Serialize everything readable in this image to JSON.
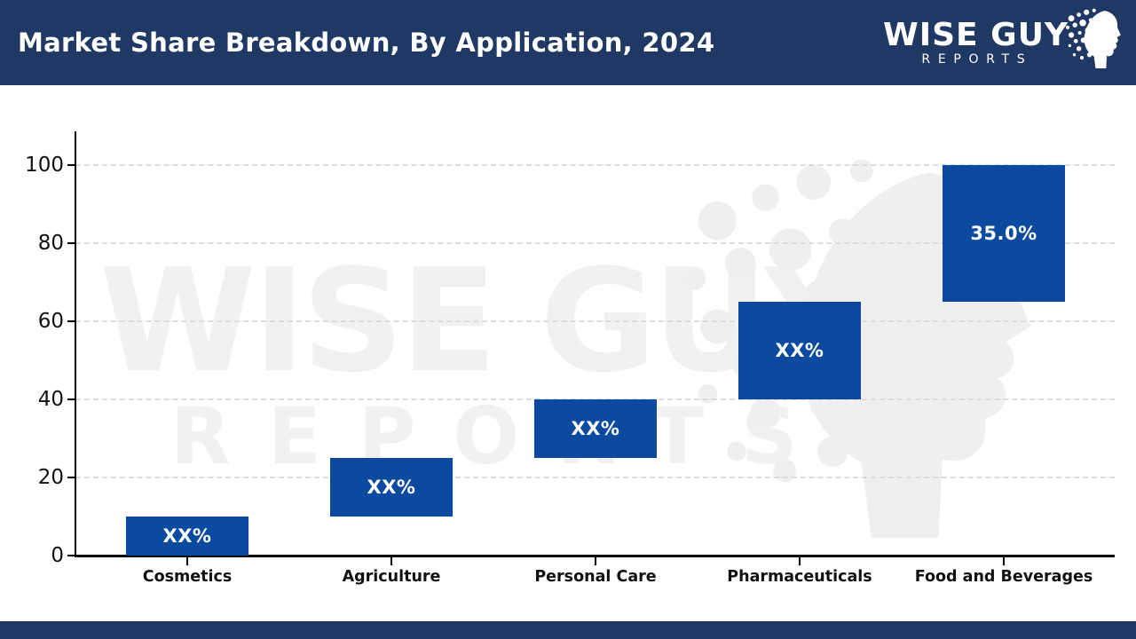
{
  "header": {
    "title": "Market Share Breakdown, By Application, 2024",
    "bg_color": "#203864",
    "logo": {
      "line1": "WISE GUY",
      "line2": "REPORTS"
    }
  },
  "watermark": {
    "line1": "WISE GUY",
    "line2": "REPORTS"
  },
  "footer": {
    "bg_color": "#203864"
  },
  "chart_data": {
    "type": "bar",
    "subtype": "waterfall",
    "title": "Market Share Breakdown, By Application, 2024",
    "xlabel": "",
    "ylabel": "",
    "categories": [
      "Cosmetics",
      "Agriculture",
      "Personal Care",
      "Pharmaceuticals",
      "Food and Beverages"
    ],
    "values": [
      10,
      15,
      15,
      25,
      35
    ],
    "segments": [
      {
        "start": 0,
        "end": 10,
        "label": "XX%"
      },
      {
        "start": 10,
        "end": 25,
        "label": "XX%"
      },
      {
        "start": 25,
        "end": 40,
        "label": "XX%"
      },
      {
        "start": 40,
        "end": 65,
        "label": "XX%"
      },
      {
        "start": 65,
        "end": 100,
        "label": "35.0%"
      }
    ],
    "bar_color": "#0b4a9e",
    "yticks": [
      0,
      20,
      40,
      60,
      80,
      100
    ],
    "ylim": [
      0,
      105
    ],
    "grid": "horizontal-dashed",
    "legend": "none"
  }
}
